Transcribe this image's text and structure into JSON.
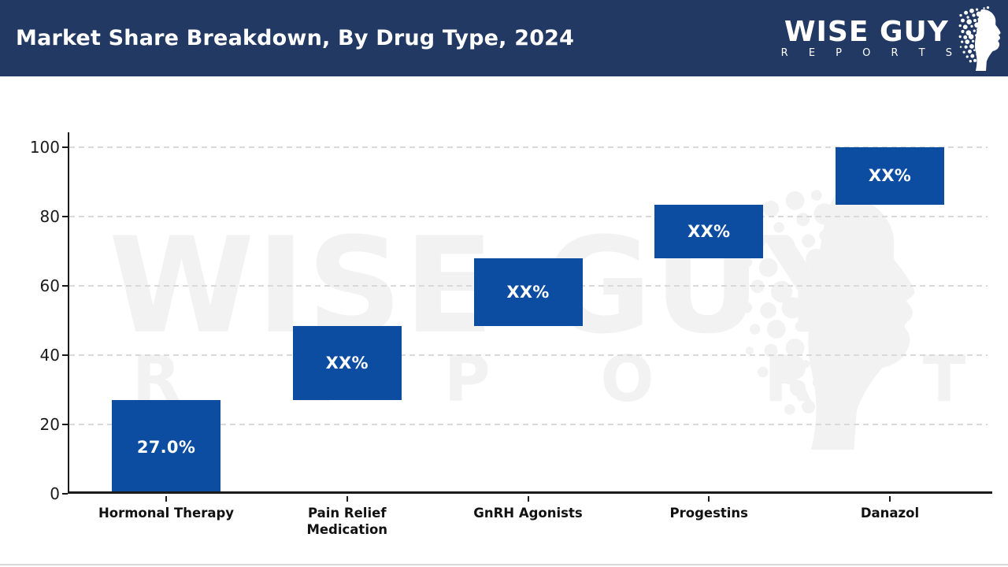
{
  "header": {
    "title": "Market Share Breakdown, By Drug Type, 2024",
    "logo": {
      "line1": "WISE GUY",
      "line2": "R E P O R T S"
    }
  },
  "watermark": {
    "line1": "WISE GUY",
    "line2": "R E P O R T S"
  },
  "colors": {
    "header_bg": "#223963",
    "bar": "#0C4DA2",
    "bar_label": "#FFFFFF",
    "grid": "#D9D9D9",
    "axis": "#1A1A1A",
    "watermark": "#F2F2F2"
  },
  "chart_data": {
    "type": "bar",
    "subtype": "floating-waterfall",
    "title": "Market Share Breakdown, By Drug Type, 2024",
    "xlabel": "",
    "ylabel": "",
    "ylim": [
      0,
      104
    ],
    "yticks": [
      0,
      20,
      40,
      60,
      80,
      100
    ],
    "grid": "horizontal-dashed",
    "legend": null,
    "categories": [
      "Hormonal Therapy",
      "Pain Relief Medication",
      "GnRH Agonists",
      "Progestins",
      "Danazol"
    ],
    "category_lines": [
      [
        "Hormonal Therapy"
      ],
      [
        "Pain Relief",
        "Medication"
      ],
      [
        "GnRH Agonists"
      ],
      [
        "Progestins"
      ],
      [
        "Danazol"
      ]
    ],
    "bars": [
      {
        "category": "Hormonal Therapy",
        "start": 0,
        "end": 27,
        "value": 27,
        "label": "27.0%"
      },
      {
        "category": "Pain Relief Medication",
        "start": 27,
        "end": 48.5,
        "value": 21.5,
        "label": "XX%"
      },
      {
        "category": "GnRH Agonists",
        "start": 48.5,
        "end": 68,
        "value": 19.5,
        "label": "XX%"
      },
      {
        "category": "Progestins",
        "start": 68,
        "end": 83.5,
        "value": 15.5,
        "label": "XX%"
      },
      {
        "category": "Danazol",
        "start": 83.5,
        "end": 100,
        "value": 16.5,
        "label": "XX%"
      }
    ]
  }
}
